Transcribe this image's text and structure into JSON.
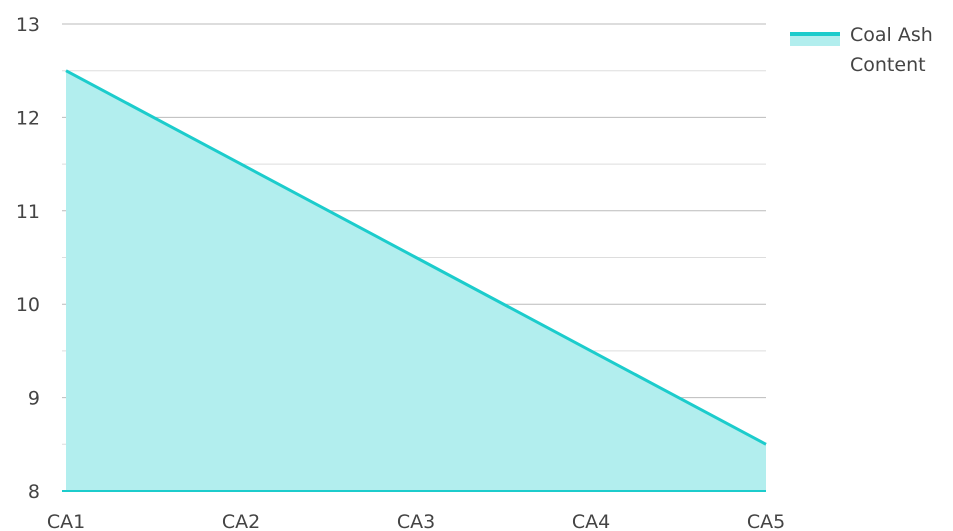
{
  "chart_data": {
    "type": "area",
    "categories": [
      "CA1",
      "CA2",
      "CA3",
      "CA4",
      "CA5"
    ],
    "series": [
      {
        "name": "Coal Ash Content",
        "values": [
          12.5,
          11.5,
          10.5,
          9.5,
          8.5
        ]
      }
    ],
    "ylim": [
      8,
      13
    ],
    "yticks": [
      8,
      9,
      10,
      11,
      12,
      13
    ],
    "grid": true,
    "legend_position": "top-right",
    "title": "",
    "xlabel": "",
    "ylabel": "",
    "colors": {
      "line": "#1ccccc",
      "fill": "#b2eeee",
      "major_grid": "#bbbbbb",
      "minor_grid": "#dddddd",
      "baseline": "#1ccccc"
    }
  }
}
